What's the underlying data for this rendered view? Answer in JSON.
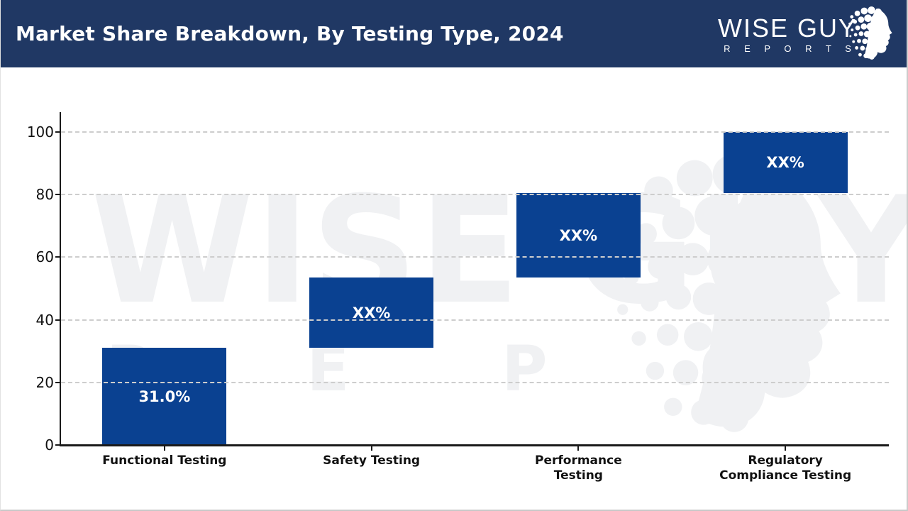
{
  "header": {
    "title": "Market Share Breakdown, By Testing Type, 2024",
    "bg_color": "#203864",
    "logo": {
      "name": "WISE GUY",
      "sub": "R E P O R T S"
    }
  },
  "watermark": {
    "big": "WISE GUY",
    "sub": "R E P O R T S"
  },
  "chart_data": {
    "type": "bar",
    "subtype": "waterfall",
    "title": "Market Share Breakdown, By Testing Type, 2024",
    "categories": [
      "Functional Testing",
      "Safety Testing",
      "Performance Testing",
      "Regulatory Compliance Testing"
    ],
    "category_label_lines": [
      [
        "Functional Testing"
      ],
      [
        "Safety Testing"
      ],
      [
        "Performance",
        "Testing"
      ],
      [
        "Regulatory",
        "Compliance Testing"
      ]
    ],
    "segments": [
      {
        "category": "Functional Testing",
        "start": 0,
        "end": 31,
        "label": "31.0%"
      },
      {
        "category": "Safety Testing",
        "start": 31,
        "end": 53.5,
        "label": "XX%"
      },
      {
        "category": "Performance Testing",
        "start": 53.5,
        "end": 80.5,
        "label": "XX%"
      },
      {
        "category": "Regulatory Compliance Testing",
        "start": 80.5,
        "end": 100,
        "label": "XX%"
      }
    ],
    "xlabel": "",
    "ylabel": "",
    "yticks": [
      0,
      20,
      40,
      60,
      80,
      100
    ],
    "ylim": [
      0,
      106
    ],
    "grid": true,
    "grid_style": "dashed",
    "legend": false,
    "bar_color": "#0a4191",
    "bar_label_color": "#ffffff",
    "axis_color": "#1a1a1a"
  }
}
